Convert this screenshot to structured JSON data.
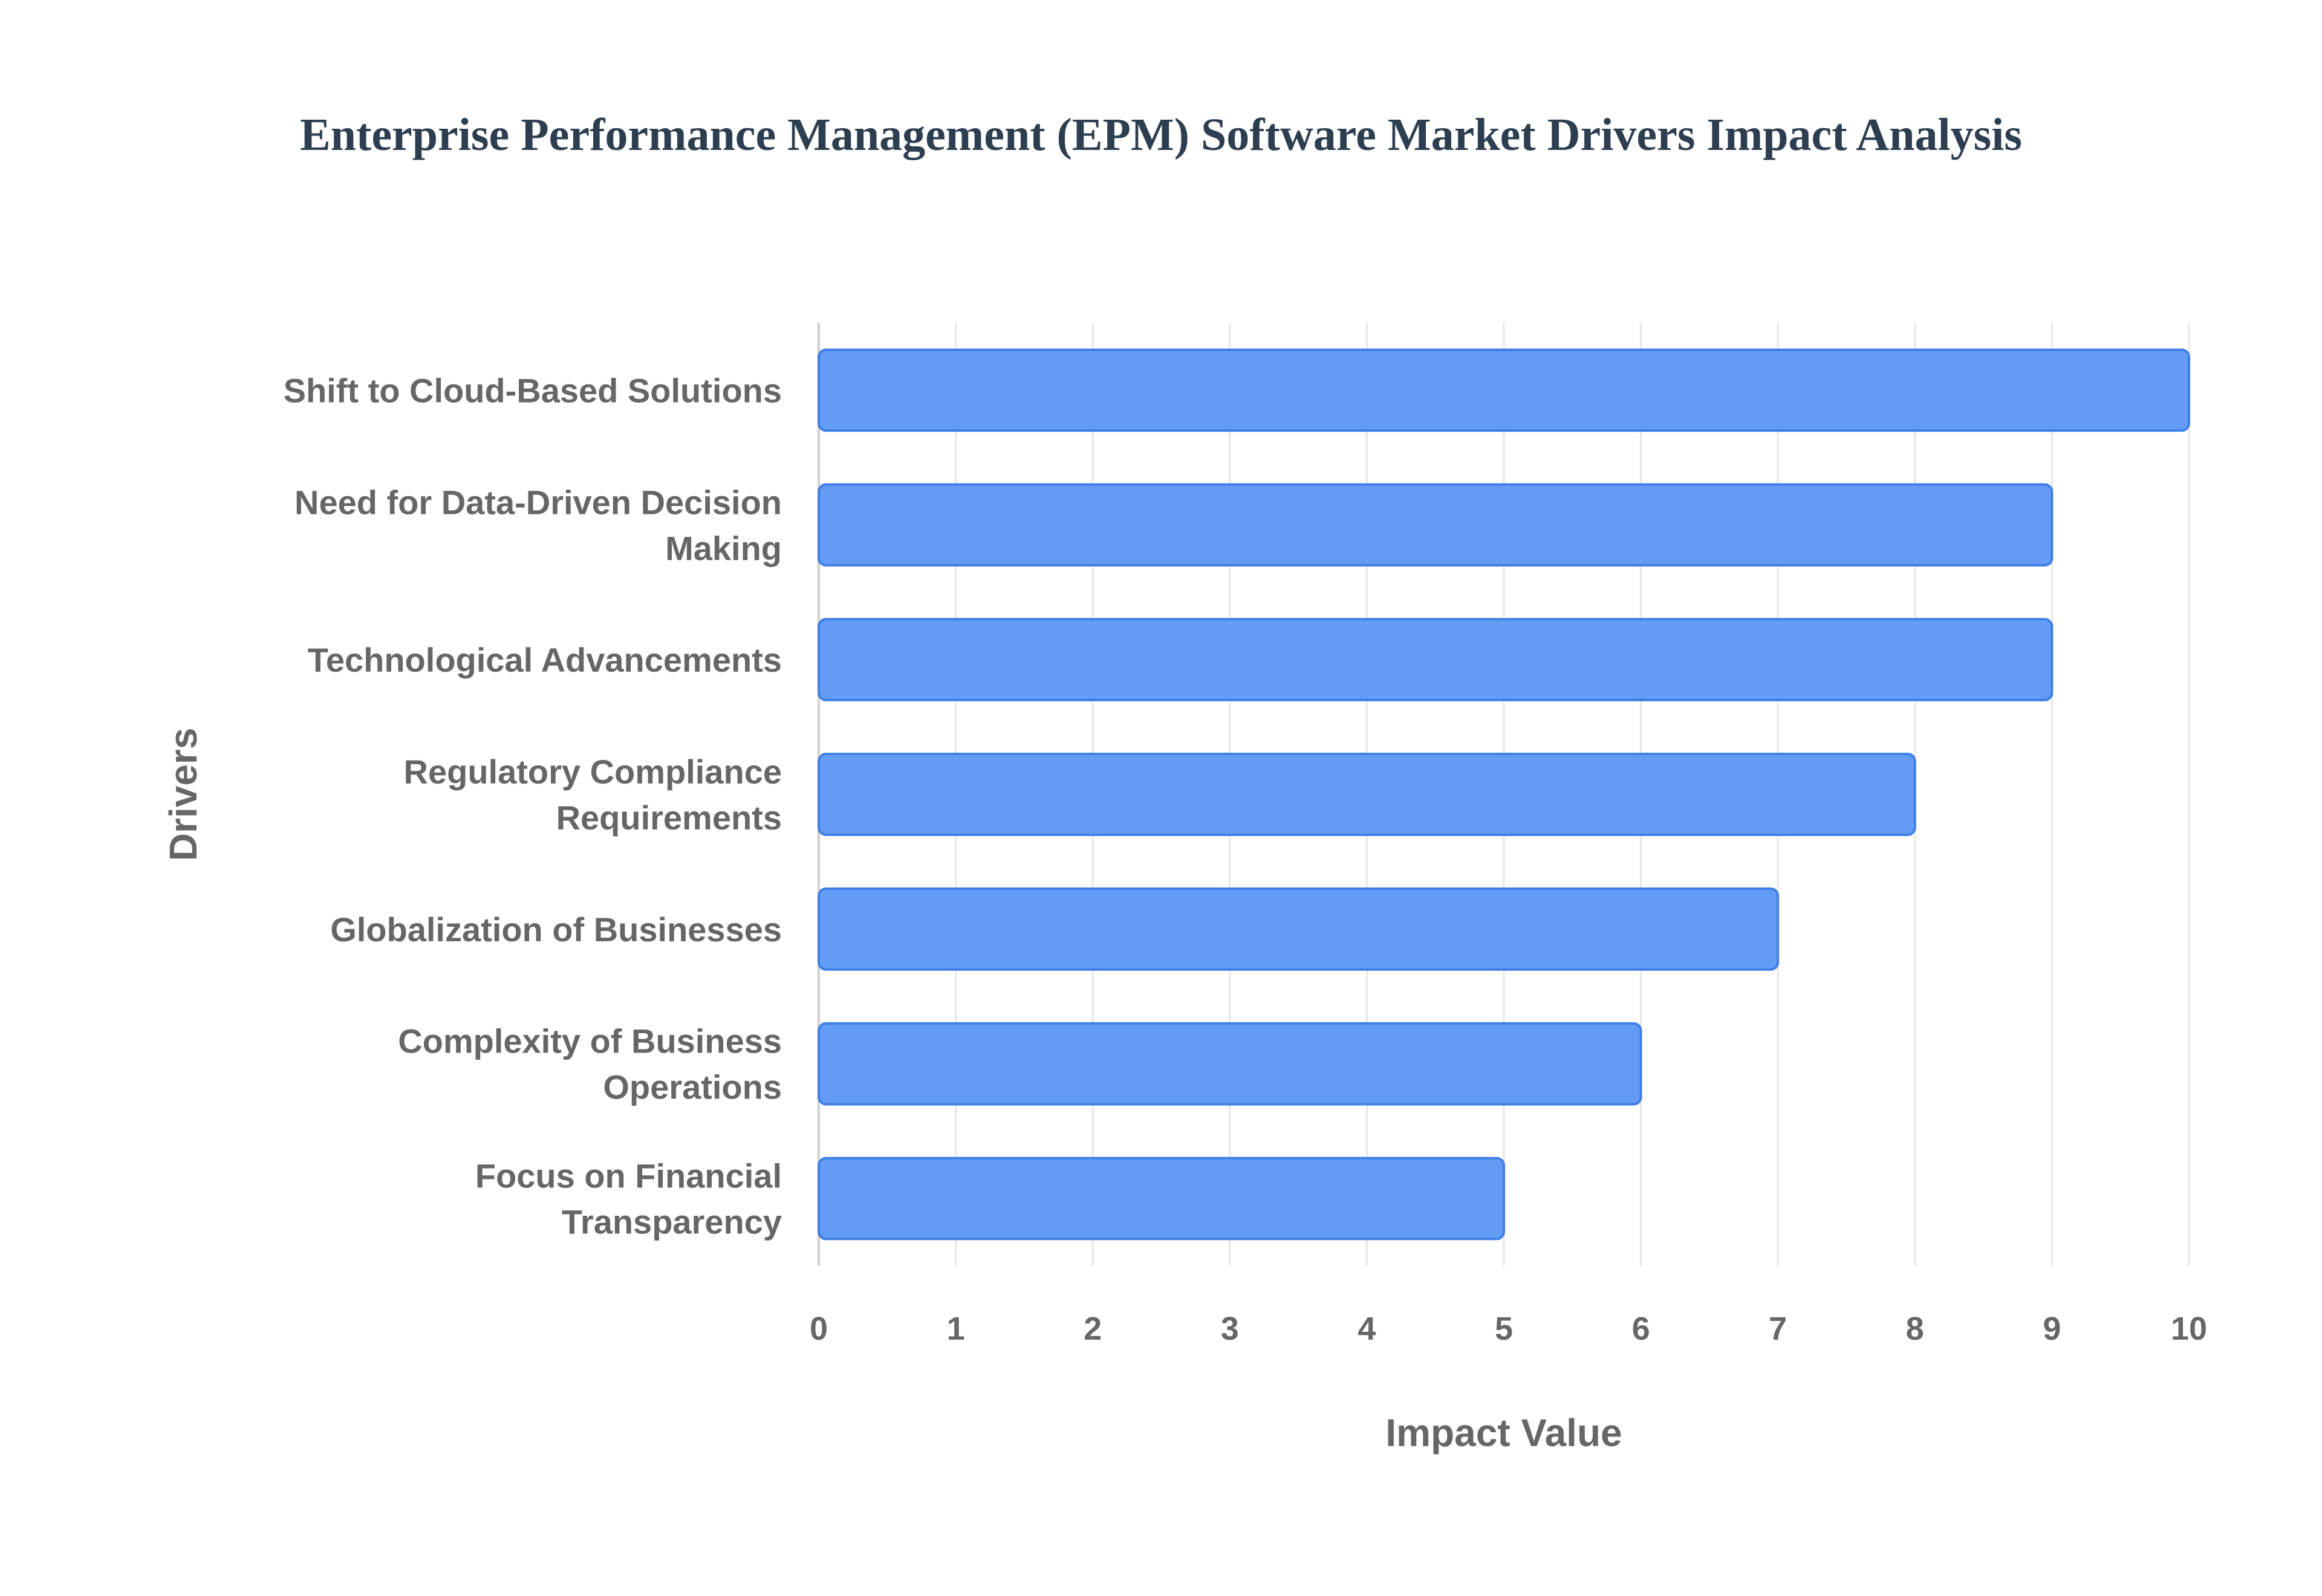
{
  "chart_data": {
    "type": "bar",
    "orientation": "horizontal",
    "title": "Enterprise Performance Management (EPM) Software Market Drivers Impact Analysis",
    "xlabel": "Impact Value",
    "ylabel": "Drivers",
    "categories": [
      "Shift to Cloud-Based Solutions",
      "Need for Data-Driven Decision Making",
      "Technological Advancements",
      "Regulatory Compliance Requirements",
      "Globalization of Businesses",
      "Complexity of Business Operations",
      "Focus on Financial Transparency"
    ],
    "category_lines": [
      [
        "Shift to Cloud-Based Solutions"
      ],
      [
        "Need for Data-Driven Decision",
        "Making"
      ],
      [
        "Technological Advancements"
      ],
      [
        "Regulatory Compliance",
        "Requirements"
      ],
      [
        "Globalization of Businesses"
      ],
      [
        "Complexity of Business",
        "Operations"
      ],
      [
        "Focus on Financial",
        "Transparency"
      ]
    ],
    "values": [
      10,
      9,
      9,
      8,
      7,
      6,
      5
    ],
    "xlim": [
      0,
      10
    ],
    "xticks": [
      0,
      1,
      2,
      3,
      4,
      5,
      6,
      7,
      8,
      9,
      10
    ],
    "grid": true,
    "colors": {
      "bar_fill": "#639bf5",
      "bar_stroke": "#3f7fe6",
      "grid": "#e6e6e6",
      "title": "#2c3e50",
      "text": "#666666"
    }
  }
}
